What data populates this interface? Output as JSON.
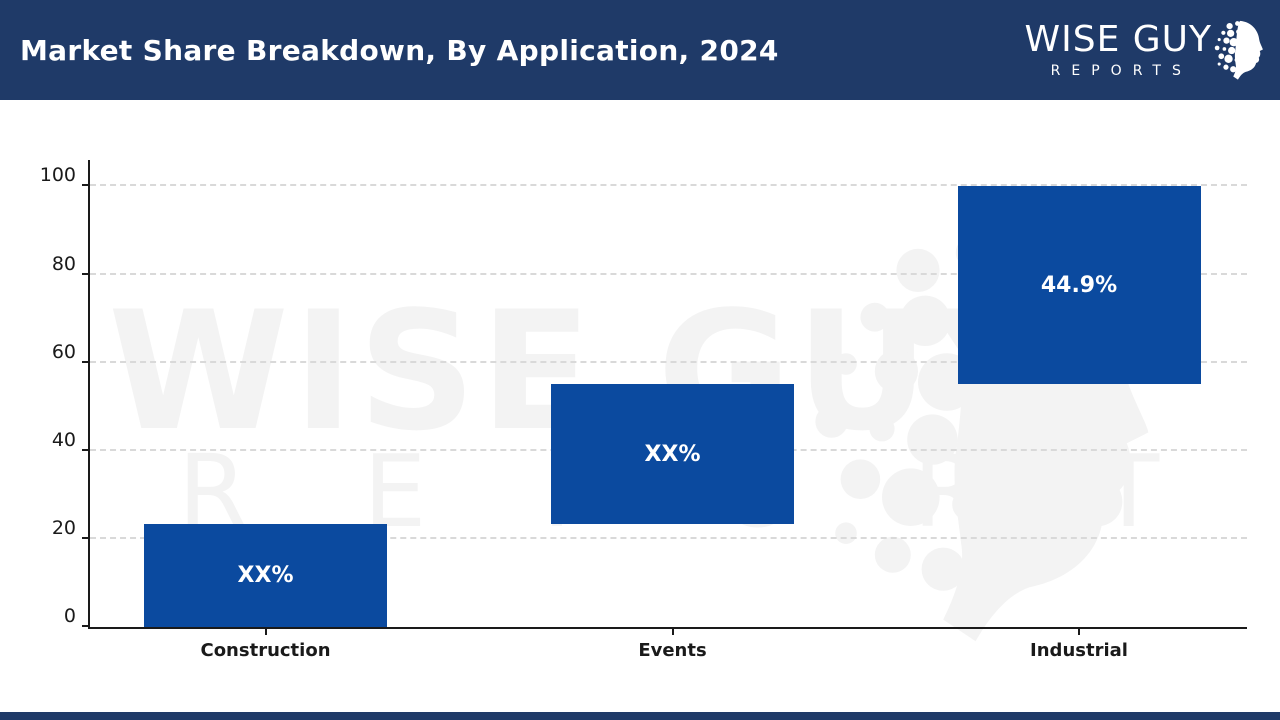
{
  "header": {
    "title": "Market Share Breakdown, By Application, 2024",
    "bg_color": "#1f3a68",
    "logo": {
      "line1": "WISE GUY",
      "line2": "REPORTS"
    }
  },
  "watermark": {
    "line1": "WISE GUY",
    "line2": "R E P O R T S",
    "color": "#f3f3f3"
  },
  "chart_data": {
    "type": "bar",
    "subtype": "floating-segment-breakdown",
    "title": "Market Share Breakdown, By Application, 2024",
    "categories": [
      "Construction",
      "Events",
      "Industrial"
    ],
    "segments": [
      {
        "category": "Construction",
        "from": 0,
        "to": 23.4,
        "value": 23.4,
        "label": "XX%"
      },
      {
        "category": "Events",
        "from": 23.4,
        "to": 55.1,
        "value": 31.7,
        "label": "XX%"
      },
      {
        "category": "Industrial",
        "from": 55.1,
        "to": 100,
        "value": 44.9,
        "label": "44.9%"
      }
    ],
    "yticks": [
      0,
      20,
      40,
      60,
      80,
      100
    ],
    "ylim": [
      0,
      106
    ],
    "xlabel": "",
    "ylabel": "",
    "grid": "horizontal-dashed",
    "legend": "none",
    "bar_color": "#0b4a9f",
    "bar_label_color": "#ffffff",
    "axis_color": "#1a1a1a",
    "gridline_color": "#d9d9d9"
  },
  "footer": {
    "bg_color": "#1f3a68"
  }
}
